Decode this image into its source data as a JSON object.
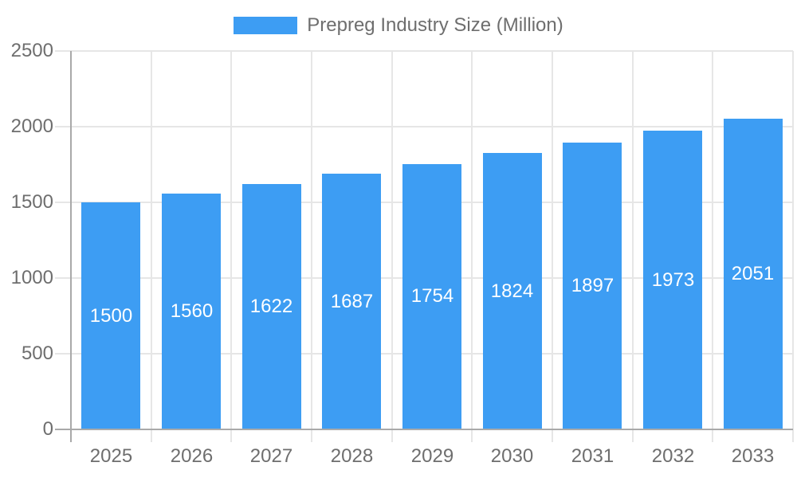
{
  "chart_data": {
    "type": "bar",
    "title": "Prepreg Industry Size (Million)",
    "legend": {
      "label": "Prepreg Industry Size (Million)",
      "position": "top"
    },
    "categories": [
      "2025",
      "2026",
      "2027",
      "2028",
      "2029",
      "2030",
      "2031",
      "2032",
      "2033"
    ],
    "values": [
      1500,
      1560,
      1622,
      1687,
      1754,
      1824,
      1897,
      1973,
      2051
    ],
    "value_labels_inside_bars": true,
    "xlabel": "",
    "ylabel": "",
    "ylim": [
      0,
      2500
    ],
    "yticks": [
      0,
      500,
      1000,
      1500,
      2000,
      2500
    ],
    "grid": "on",
    "colors": {
      "bar": "#3D9DF3",
      "bar_value_text": "#FFFFFF",
      "axis_text": "#6E6E6E",
      "gridline": "#E6E6E6",
      "axis_line": "#A9A9A9",
      "background": "#FFFFFF"
    }
  }
}
